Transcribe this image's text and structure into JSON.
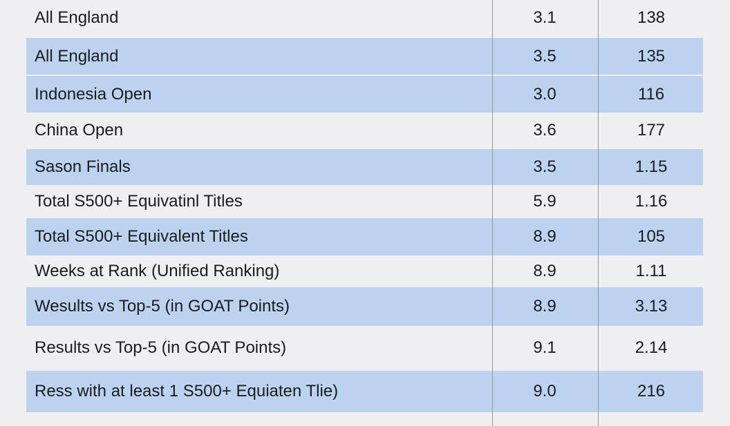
{
  "table": {
    "rows": [
      [
        "All England",
        "3.1",
        "138"
      ],
      [
        "All England",
        "3.5",
        "135"
      ],
      [
        "Indonesia Open",
        "3.0",
        "116"
      ],
      [
        "China Open",
        "3.6",
        "177"
      ],
      [
        "Sason Finals",
        "3.5",
        "1.15"
      ],
      [
        "Total S500+ Equivatinl Titles",
        "5.9",
        "1.16"
      ],
      [
        "Total S500+ Equivalent Titles",
        "8.9",
        "105"
      ],
      [
        "Weeks at Rank (Unified Ranking)",
        "8.9",
        "1.11"
      ],
      [
        "Wesults vs Top-5 (in GOAT Points)",
        "8.9",
        "3.13"
      ],
      [
        "Results vs Top-5 (in GOAT Points)",
        "9.1",
        "2.14"
      ],
      [
        "Ress with at least 1 S500+ Equiaten Tlie)",
        "9.0",
        "216"
      ]
    ]
  }
}
